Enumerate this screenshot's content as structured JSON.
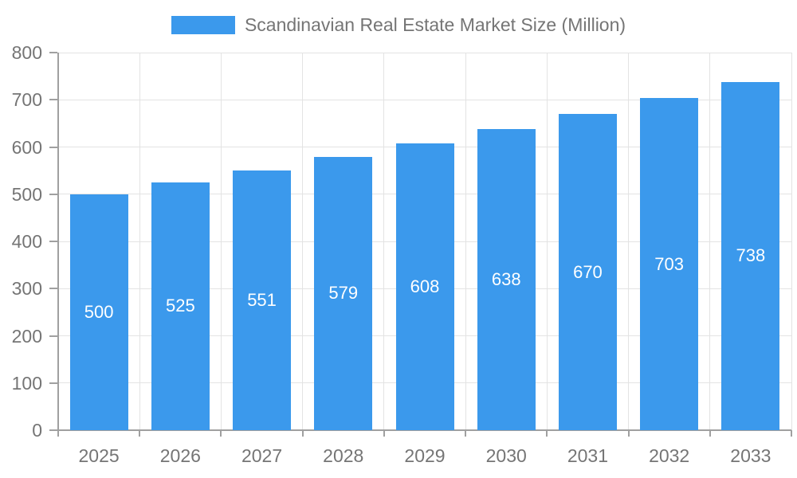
{
  "colors": {
    "bar": "#3B99EC",
    "grid": "#E3E3E3",
    "axis": "#A0A0A0",
    "text": "#757575",
    "value_label": "#FFFFFF",
    "background": "#FFFFFF"
  },
  "chart_data": {
    "type": "bar",
    "title": "Scandinavian Real Estate Market Size (Million)",
    "categories": [
      "2025",
      "2026",
      "2027",
      "2028",
      "2029",
      "2030",
      "2031",
      "2032",
      "2033"
    ],
    "values": [
      500,
      525,
      551,
      579,
      608,
      638,
      670,
      703,
      738
    ],
    "xlabel": "",
    "ylabel": "",
    "ylim": [
      0,
      800
    ],
    "ytick_step": 100,
    "ytick_labels": [
      "0",
      "100",
      "200",
      "300",
      "400",
      "500",
      "600",
      "700",
      "800"
    ],
    "grid": "on",
    "gridlines": "horizontal-and-vertical",
    "legend_position": "top-center",
    "value_labels": "inside-middle",
    "bar_width_fraction": 0.71
  }
}
